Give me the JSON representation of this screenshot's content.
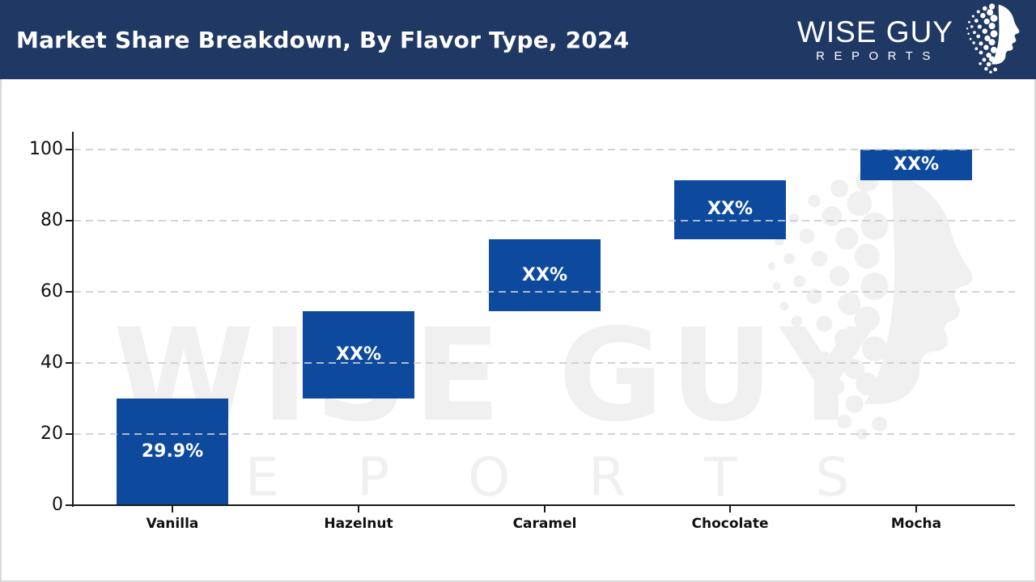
{
  "header": {
    "title": "Market Share Breakdown, By Flavor Type, 2024",
    "logo": {
      "wordmark": "WISE GUY",
      "subtext": "REPORTS",
      "icon": "dotted-head"
    }
  },
  "watermark": {
    "wordmark": "WISE GUY",
    "subtext": "R E P O R T S",
    "icon": "dotted-head"
  },
  "chart_data": {
    "type": "bar",
    "subtype": "waterfall",
    "title": "Market Share Breakdown, By Flavor Type, 2024",
    "xlabel": "",
    "ylabel": "",
    "categories": [
      "Vanilla",
      "Hazelnut",
      "Caramel",
      "Chocolate",
      "Mocha"
    ],
    "segments": [
      {
        "category": "Vanilla",
        "start": 0,
        "end": 29.9,
        "label": "29.9%"
      },
      {
        "category": "Hazelnut",
        "start": 29.9,
        "end": 54.5,
        "label": "XX%"
      },
      {
        "category": "Caramel",
        "start": 54.5,
        "end": 74.8,
        "label": "XX%"
      },
      {
        "category": "Chocolate",
        "start": 74.8,
        "end": 91.4,
        "label": "XX%"
      },
      {
        "category": "Mocha",
        "start": 91.4,
        "end": 100,
        "label": "XX%"
      }
    ],
    "yticks": [
      0,
      20,
      40,
      60,
      80,
      100
    ],
    "ylim": [
      0,
      105
    ],
    "grid": {
      "axis": "y",
      "style": "dashed"
    },
    "legend": "none",
    "bar_color": "#0d4a9e",
    "bar_label_color": "#ffffff"
  },
  "colors": {
    "header_bg": "#203864",
    "header_text": "#ffffff",
    "bar": "#0d4a9e",
    "axis": "#1a1a1a",
    "gridline": "#d9d9d9",
    "watermark": "#f0f0f0",
    "background": "#ffffff",
    "page_border": "#d9d9d9"
  }
}
